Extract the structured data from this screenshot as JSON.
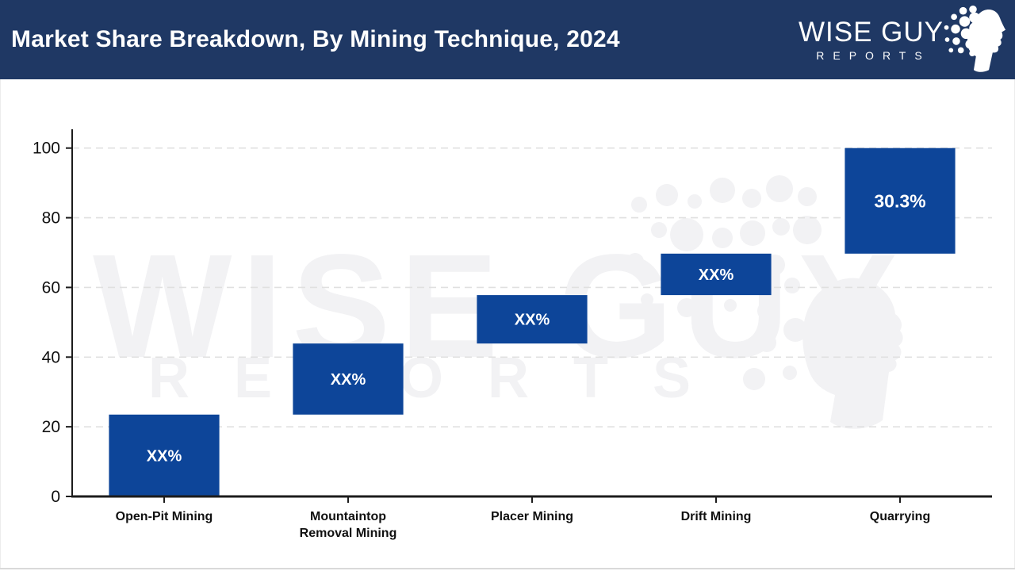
{
  "header": {
    "title": "Market Share Breakdown, By Mining Technique, 2024",
    "logo": {
      "line1": "WISE GUY",
      "line2": "REPORTS"
    }
  },
  "watermark": {
    "line1": "WISE GUY",
    "line2": "REPORTS"
  },
  "chart_data": {
    "type": "bar",
    "subtype": "waterfall",
    "title": "Market Share Breakdown, By Mining Technique, 2024",
    "xlabel": "",
    "ylabel": "",
    "grid": true,
    "legend": false,
    "ylim": [
      0,
      105.4
    ],
    "yticks": [
      0,
      20,
      40,
      60,
      80,
      100
    ],
    "categories": [
      [
        "Open-Pit Mining"
      ],
      [
        "Mountaintop",
        "Removal Mining"
      ],
      [
        "Placer Mining"
      ],
      [
        "Drift Mining"
      ],
      [
        "Quarrying"
      ]
    ],
    "segments": [
      {
        "category": "Open-Pit Mining",
        "start": 0,
        "end": 23.5,
        "value_est": 23.5,
        "label": "XX%"
      },
      {
        "category": "Mountaintop Removal Mining",
        "start": 23.5,
        "end": 43.9,
        "value_est": 20.4,
        "label": "XX%"
      },
      {
        "category": "Placer Mining",
        "start": 43.9,
        "end": 57.8,
        "value_est": 13.9,
        "label": "XX%"
      },
      {
        "category": "Drift Mining",
        "start": 57.8,
        "end": 69.7,
        "value_est": 11.9,
        "label": "XX%"
      },
      {
        "category": "Quarrying",
        "start": 69.7,
        "end": 100.0,
        "value_est": 30.3,
        "label": "30.3%"
      }
    ],
    "bar_color": "#0d4599",
    "colors": {
      "header_bg": "#1f3864",
      "axis": "#1c1c1c",
      "grid": "#e0e0e0",
      "tick_text": "#111111",
      "bar_label_text": "#ffffff",
      "watermark": "#f2f2f4",
      "divider": "#d9d9d9"
    },
    "icons": {
      "logo_face": "face-profile-dots-icon",
      "watermark_face": "face-profile-dots-icon"
    }
  }
}
